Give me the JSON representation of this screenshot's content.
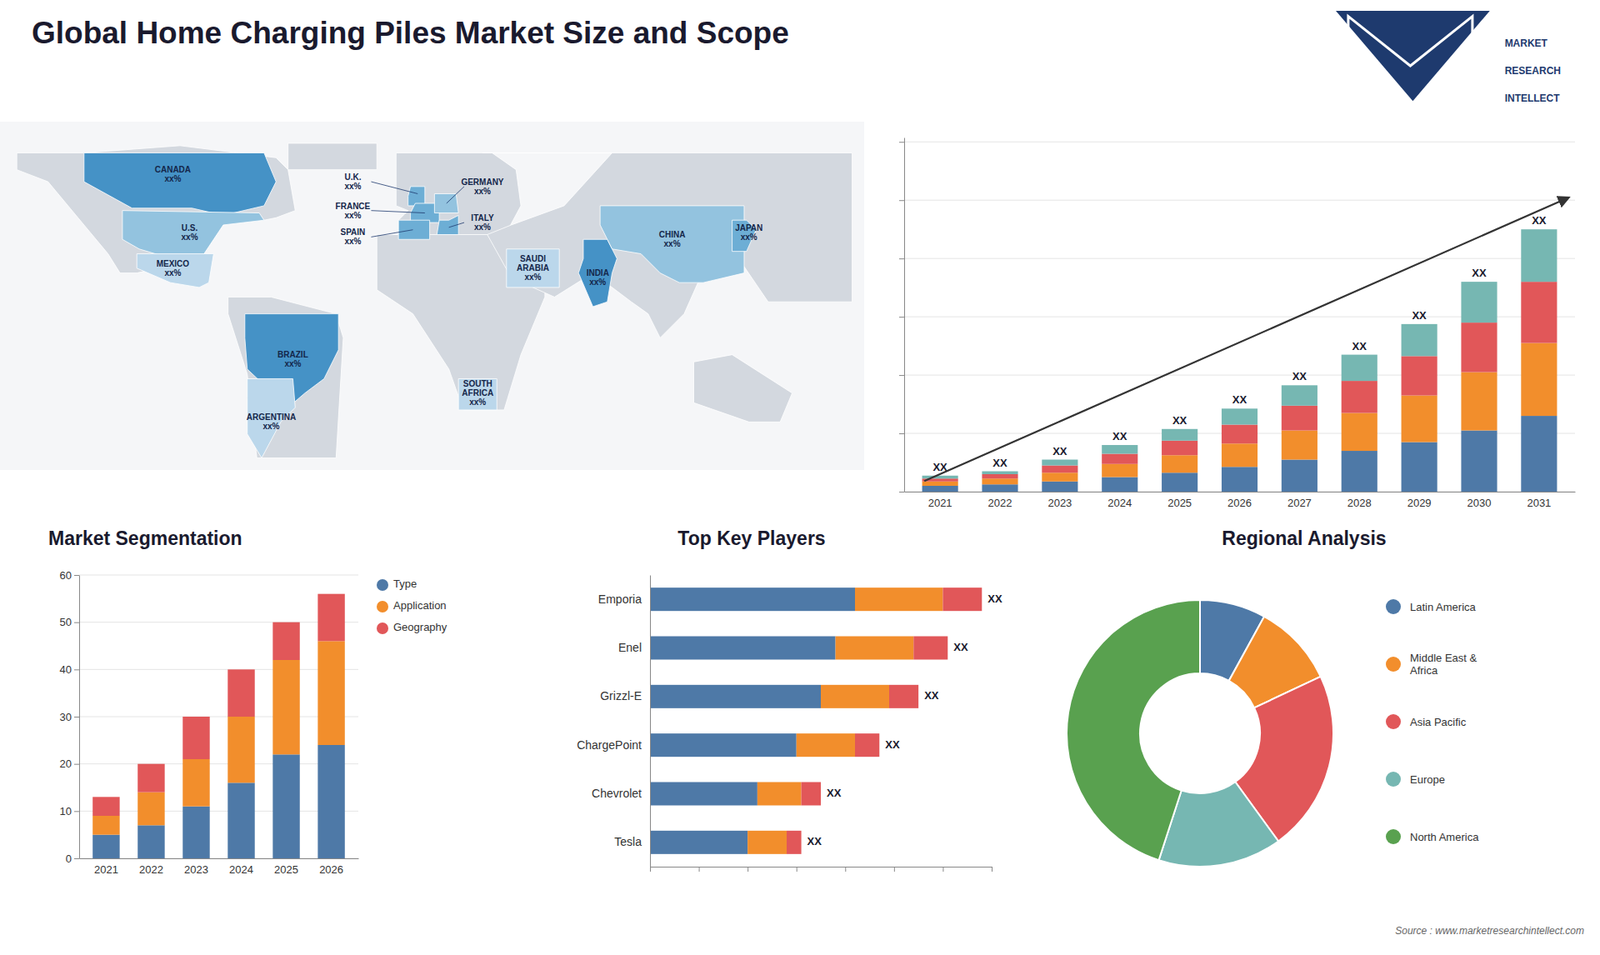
{
  "chart_data": [
    {
      "type": "map",
      "title": "Global Home Charging Piles Market Size and Scope",
      "annotations": [
        "CANADA\nxx%",
        "U.S.\nxx%",
        "MEXICO\nxx%",
        "BRAZIL\nxx%",
        "ARGENTINA\nxx%",
        "U.K.\nxx%",
        "FRANCE\nxx%",
        "GERMANY\nxx%",
        "SPAIN\nxx%",
        "ITALY\nxx%",
        "SAUDI\nARABIA\nxx%",
        "SOUTH\nAFRICA\nxx%",
        "INDIA\nxx%",
        "CHINA\nxx%",
        "JAPAN\nxx%",
        "MARKET\nRESEARCH\nINTELLECT",
        "Source : www.marketresearchintellect.com"
      ]
    },
    {
      "type": "bar",
      "stacked": true,
      "categories": [
        "2021",
        "2022",
        "2023",
        "2024",
        "2025",
        "2026",
        "2027",
        "2028",
        "2029",
        "2030",
        "2031"
      ],
      "series": [
        {
          "values": [
            2,
            2.5,
            3.5,
            5,
            6.5,
            8.5,
            11,
            14,
            17,
            21,
            26
          ]
        },
        {
          "values": [
            1.5,
            2,
            3,
            4.5,
            6,
            8,
            10,
            13,
            16,
            20,
            25
          ]
        },
        {
          "values": [
            1,
            1.5,
            2.5,
            3.5,
            5,
            6.5,
            8.5,
            11,
            13.5,
            17,
            21
          ]
        },
        {
          "values": [
            1,
            1,
            2,
            3,
            4,
            5.5,
            7,
            9,
            11,
            14,
            18
          ]
        }
      ],
      "annotations": [
        "XX",
        "XX",
        "XX",
        "XX",
        "XX",
        "XX",
        "XX",
        "XX",
        "XX",
        "XX",
        "XX"
      ],
      "ylim": [
        0,
        121.5
      ],
      "yticks": [
        0,
        20,
        40,
        60,
        80,
        100,
        120
      ],
      "grid": true,
      "tick_labels": "x"
    },
    {
      "type": "bar",
      "title": "Market Segmentation",
      "stacked": true,
      "categories": [
        "2021",
        "2022",
        "2023",
        "2024",
        "2025",
        "2026"
      ],
      "series": [
        {
          "name": "Type",
          "values": [
            5,
            7,
            11,
            16,
            22,
            24
          ]
        },
        {
          "name": "Application",
          "values": [
            4,
            7,
            10,
            14,
            20,
            22
          ]
        },
        {
          "name": "Geography",
          "values": [
            4,
            6,
            9,
            10,
            8,
            10
          ]
        }
      ],
      "ylim": [
        0,
        60
      ],
      "yticks": [
        0,
        10,
        20,
        30,
        40,
        50,
        60
      ],
      "grid": true,
      "legend": "right"
    },
    {
      "type": "bar",
      "title": "Top Key Players",
      "orientation": "horizontal",
      "stacked": true,
      "categories": [
        "Emporia",
        "Enel",
        "Grizzl-E",
        "ChargePoint",
        "Chevrolet",
        "Tesla"
      ],
      "series": [
        {
          "values": [
            42,
            38,
            35,
            30,
            22,
            20
          ]
        },
        {
          "values": [
            18,
            16,
            14,
            12,
            9,
            8
          ]
        },
        {
          "values": [
            8,
            7,
            6,
            5,
            4,
            3
          ]
        }
      ],
      "annotations": [
        "XX",
        "XX",
        "XX",
        "XX",
        "XX",
        "XX"
      ],
      "xlim": [
        0,
        70
      ],
      "xticks": [
        0,
        10,
        20,
        30,
        40,
        50,
        60,
        70
      ],
      "tick_labels": "y"
    },
    {
      "type": "donut",
      "title": "Regional Analysis",
      "categories": [
        "Latin America",
        "Middle East &\nAfrica",
        "Asia Pacific",
        "Europe",
        "North America"
      ],
      "values": [
        8,
        10,
        22,
        15,
        45
      ],
      "legend": "right"
    }
  ]
}
